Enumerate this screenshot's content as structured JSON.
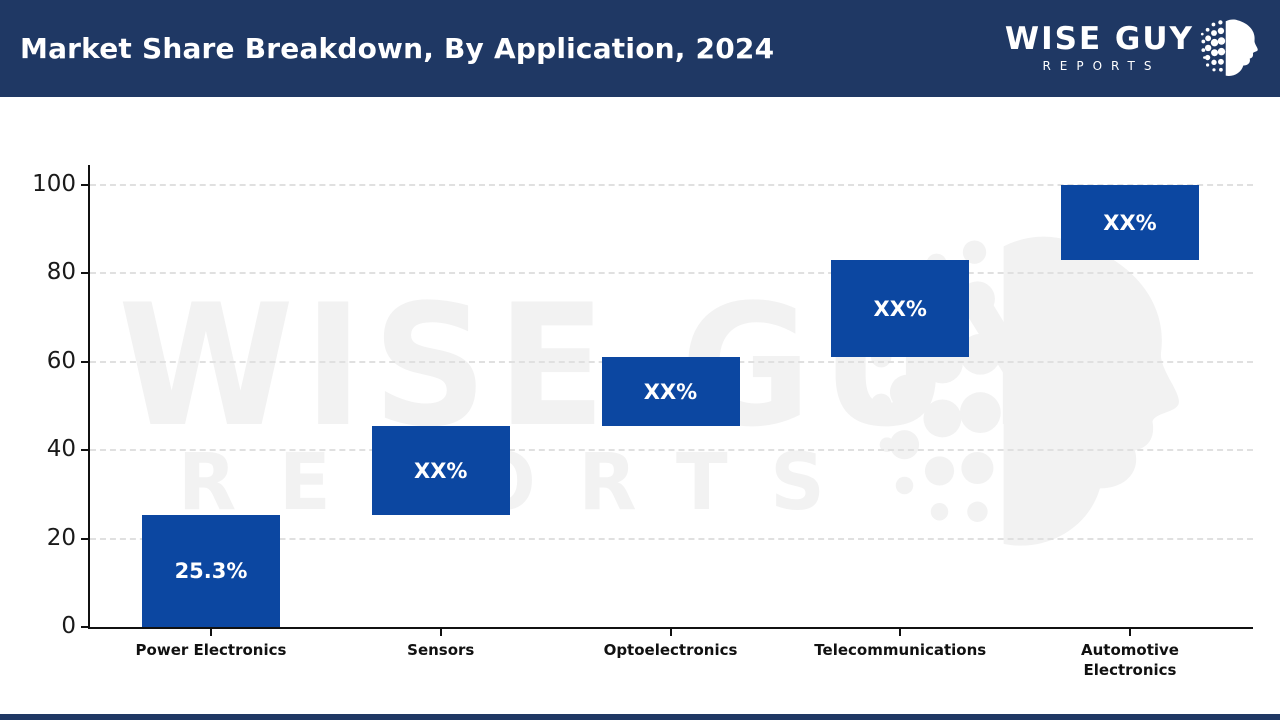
{
  "header": {
    "title": "Market Share Breakdown, By Application, 2024",
    "logo": {
      "line1": "WISE GUY",
      "line2": "REPORTS"
    }
  },
  "watermark": {
    "line1": "WISE GUY",
    "line2": "REPORTS"
  },
  "colors": {
    "header_bg": "#1f3864",
    "footer_bg": "#1f3864",
    "bar": "#0c47a1",
    "bar_label": "#ffffff",
    "axis": "#111111",
    "grid": "#e0e0e0",
    "watermark": "#f2f2f2"
  },
  "chart_data": {
    "type": "bar",
    "subtype": "floating-waterfall",
    "title": "Market Share Breakdown, By Application, 2024",
    "xlabel": "",
    "ylabel": "",
    "ylim": [
      0,
      100
    ],
    "yticks": [
      0,
      20,
      40,
      60,
      80,
      100
    ],
    "grid": "horizontal-dashed",
    "legend": "none",
    "bar_color": "#0c47a1",
    "categories": [
      "Power Electronics",
      "Sensors",
      "Optoelectronics",
      "Telecommunications",
      "Automotive Electronics"
    ],
    "tick_label_lines": [
      [
        "Power Electronics"
      ],
      [
        "Sensors"
      ],
      [
        "Optoelectronics"
      ],
      [
        "Telecommunications"
      ],
      [
        "Automotive",
        "Electronics"
      ]
    ],
    "series": [
      {
        "name": "Market Share (%)",
        "segments": [
          {
            "category": "Power Electronics",
            "start": 0,
            "end": 25.3,
            "label": "25.3%"
          },
          {
            "category": "Sensors",
            "start": 25.3,
            "end": 45.5,
            "label": "XX%"
          },
          {
            "category": "Optoelectronics",
            "start": 45.5,
            "end": 61,
            "label": "XX%"
          },
          {
            "category": "Telecommunications",
            "start": 61,
            "end": 83,
            "label": "XX%"
          },
          {
            "category": "Automotive Electronics",
            "start": 83,
            "end": 100,
            "label": "XX%"
          }
        ]
      }
    ]
  }
}
